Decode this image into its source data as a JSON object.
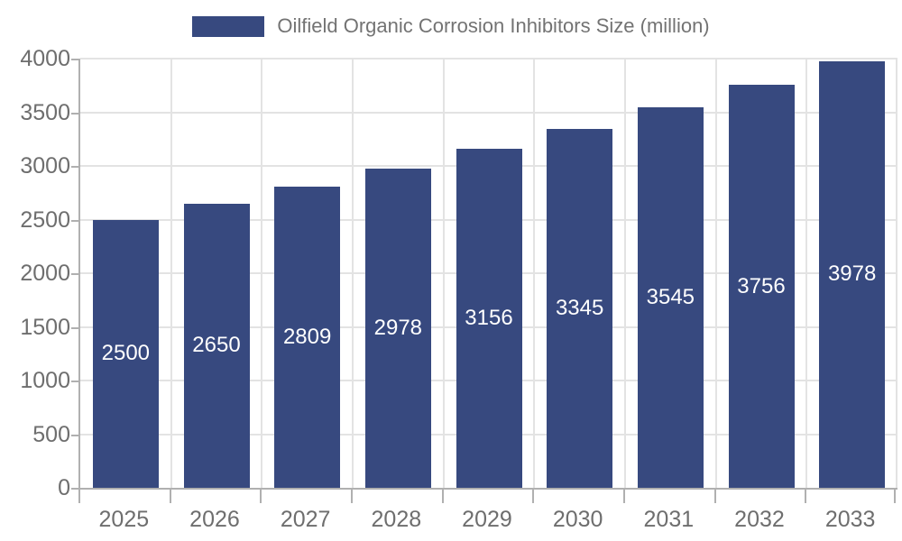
{
  "chart_data": {
    "type": "bar",
    "title": "Oilfield Organic Corrosion Inhibitors Size (million)",
    "legend": [
      {
        "label": "Oilfield Organic Corrosion Inhibitors Size (million)"
      }
    ],
    "legend_position": "top-center",
    "categories": [
      "2025",
      "2026",
      "2027",
      "2028",
      "2029",
      "2030",
      "2031",
      "2032",
      "2033"
    ],
    "series": [
      {
        "name": "Oilfield Organic Corrosion Inhibitors Size (million)",
        "values": [
          2500,
          2650,
          2809,
          2978,
          3156,
          3345,
          3545,
          3756,
          3978
        ]
      }
    ],
    "value_labels": {
      "visible": true,
      "position": "inside-center",
      "color": "#ffffff"
    },
    "xlabel": "",
    "ylabel": "",
    "ylim": [
      0,
      4000
    ],
    "yticks": [
      0,
      500,
      1000,
      1500,
      2000,
      2500,
      3000,
      3500,
      4000
    ],
    "grid": {
      "horizontal": true,
      "vertical": true
    },
    "colors": {
      "bar": "#37497f",
      "grid_line": "#e3e3e3",
      "axis_line": "#b0b0b0",
      "tick_label": "#6e6e6e",
      "legend_text": "#737373",
      "value_label": "#ffffff",
      "background": "#ffffff"
    }
  }
}
